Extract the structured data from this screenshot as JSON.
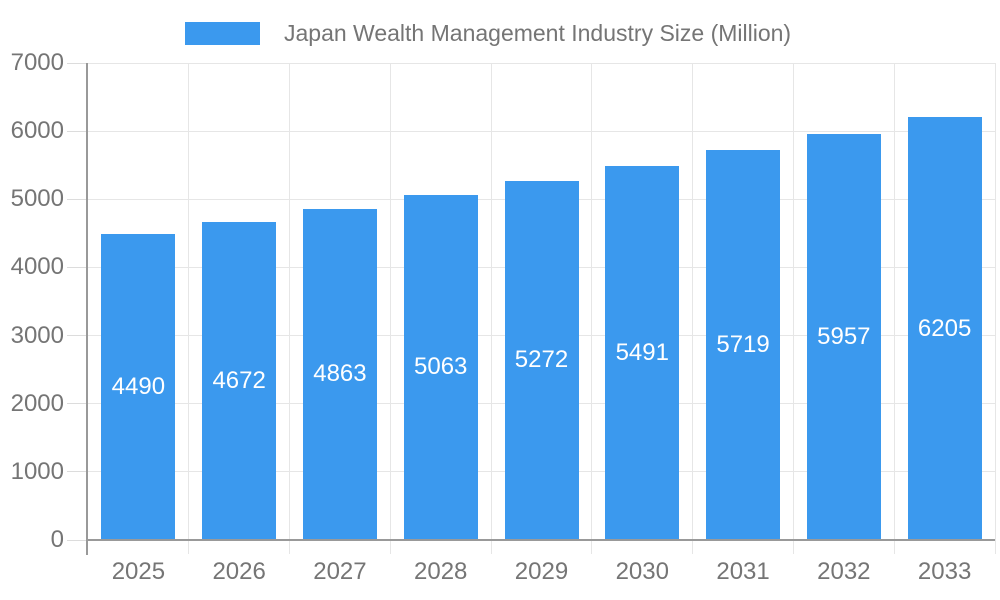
{
  "chart_data": {
    "type": "bar",
    "title": "Japan Wealth Management Industry Size (Million)",
    "categories": [
      "2025",
      "2026",
      "2027",
      "2028",
      "2029",
      "2030",
      "2031",
      "2032",
      "2033"
    ],
    "values": [
      4490,
      4672,
      4863,
      5063,
      5272,
      5491,
      5719,
      5957,
      6205
    ],
    "xlabel": "",
    "ylabel": "",
    "ylim": [
      0,
      7000
    ],
    "yticks": [
      0,
      1000,
      2000,
      3000,
      4000,
      5000,
      6000,
      7000
    ],
    "legend_position": "top",
    "grid": true,
    "bar_color": "#3b99ee",
    "value_label_color": "#ffffff",
    "axis_text_color": "#757575",
    "axis_line_color": "#999999",
    "grid_color": "#e6e6e6",
    "tick_color": "#dcdcdc",
    "background": "#ffffff"
  }
}
